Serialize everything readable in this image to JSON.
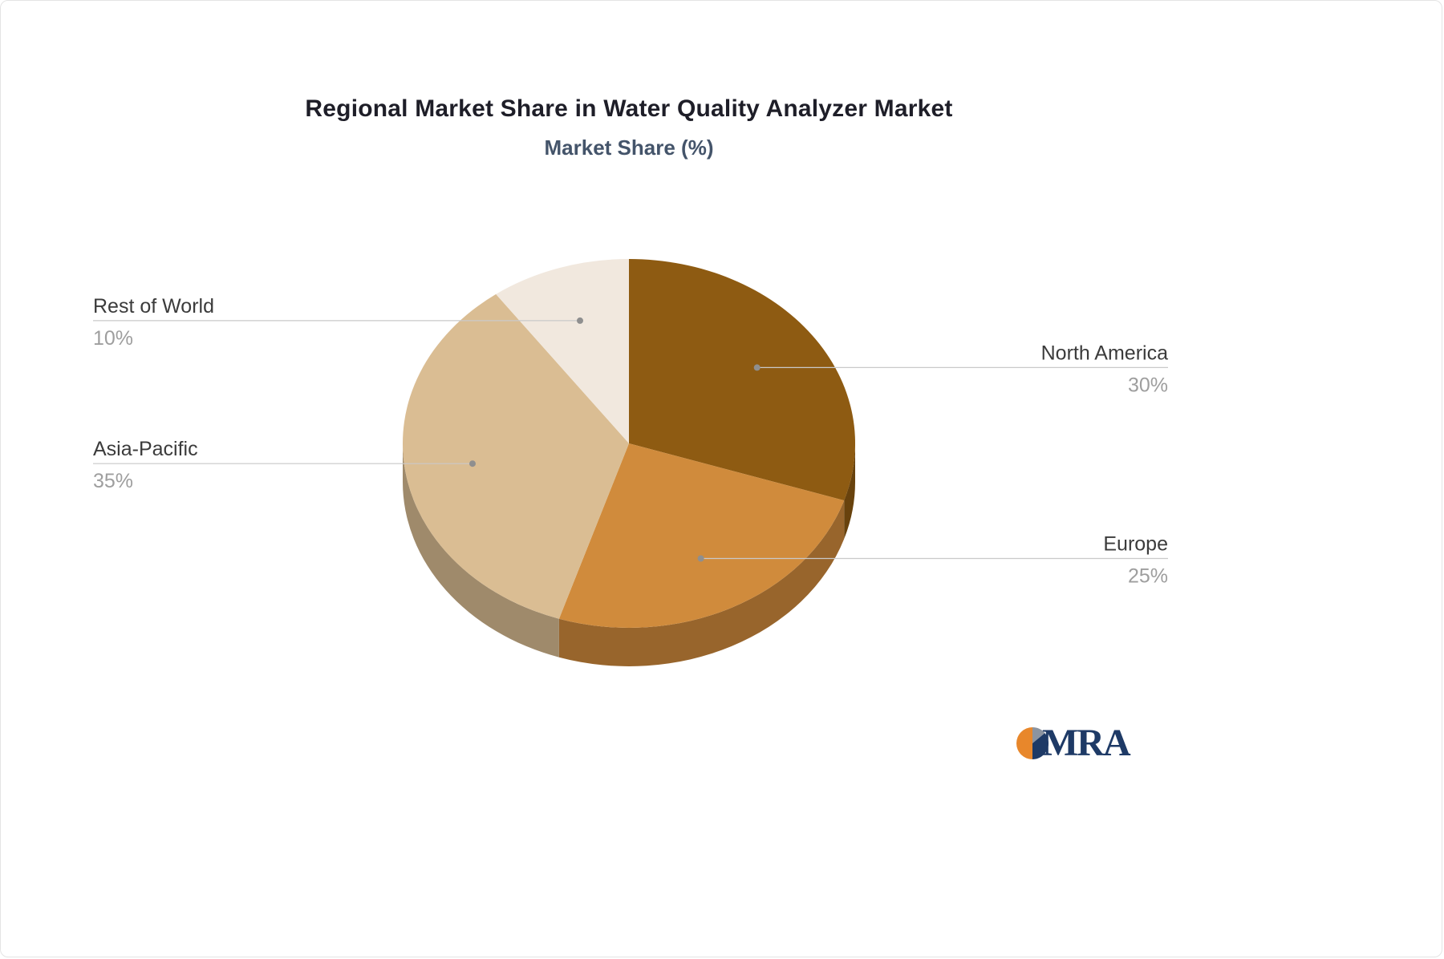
{
  "header": {
    "title": "Regional Market Share in Water Quality Analyzer Market",
    "subtitle": "Market Share (%)"
  },
  "chart_data": {
    "type": "pie",
    "style": "3d-pie",
    "title": "Regional Market Share in Water Quality Analyzer Market",
    "subtitle": "Market Share (%)",
    "unit": "%",
    "start_angle_deg": 0,
    "direction": "clockwise",
    "legend": "none",
    "categories": [
      "North America",
      "Europe",
      "Asia-Pacific",
      "Rest of World"
    ],
    "values": [
      30,
      25,
      35,
      10
    ],
    "value_labels": [
      "30%",
      "25%",
      "35%",
      "10%"
    ],
    "colors": [
      "#8E5B12",
      "#D08B3C",
      "#DABD93",
      "#F1E8DE"
    ],
    "title_color": "#1E1E28",
    "subtitle_color": "#44546A",
    "label_color": "#3B3B3B",
    "value_color": "#9E9E9E",
    "leader_line_color": "#C9C9C9",
    "leader_dot_color": "#8F8F8F"
  },
  "footer": {
    "logo_text": "MRA",
    "logo_text_color": "#1E3A66",
    "logo_icon_segments": [
      {
        "color": "#8C94A0",
        "frac": 0.14
      },
      {
        "color": "#1E3A66",
        "frac": 0.36
      },
      {
        "color": "#E8872B",
        "frac": 0.5
      }
    ]
  }
}
